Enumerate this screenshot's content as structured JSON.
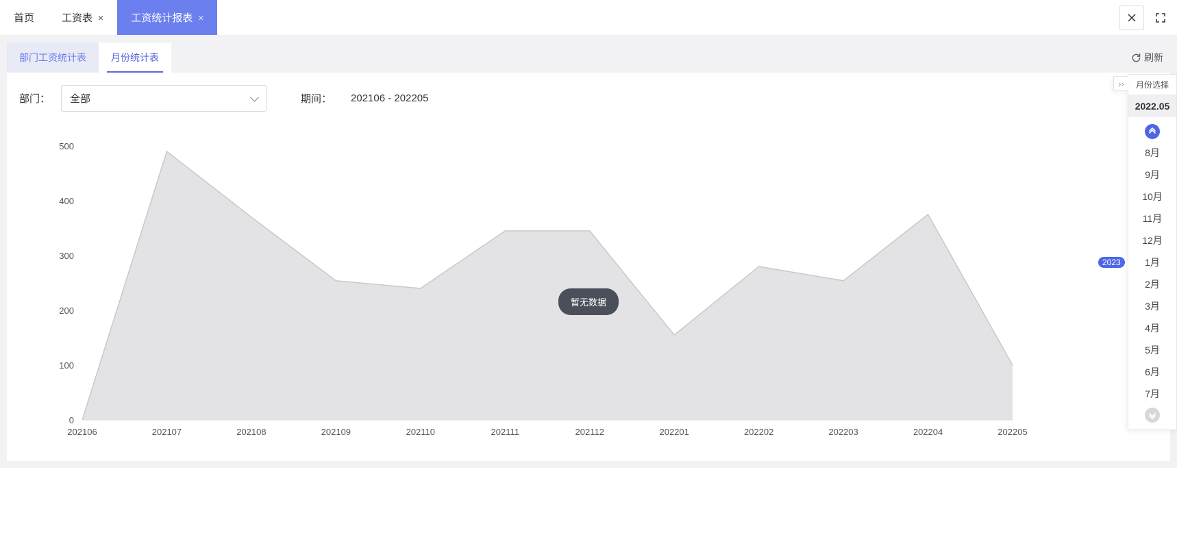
{
  "tabs": [
    {
      "label": "首页",
      "closable": false,
      "active": false
    },
    {
      "label": "工资表",
      "closable": true,
      "active": false
    },
    {
      "label": "工资统计报表",
      "closable": true,
      "active": true
    }
  ],
  "sub_tabs": [
    {
      "label": "部门工资统计表",
      "active": false
    },
    {
      "label": "月份统计表",
      "active": true
    }
  ],
  "refresh_label": "刷新",
  "filter": {
    "dept_label": "部门：",
    "dept_value": "全部",
    "period_label": "期间：",
    "period_value": "202106 - 202205"
  },
  "chart": {
    "type": "area",
    "categories": [
      "202106",
      "202107",
      "202108",
      "202109",
      "202110",
      "202111",
      "202112",
      "202201",
      "202202",
      "202203",
      "202204",
      "202205"
    ],
    "values": [
      0,
      490,
      370,
      254,
      240,
      345,
      345,
      155,
      280,
      254,
      375,
      100
    ],
    "ylim": [
      0,
      500
    ],
    "ytick_step": 100,
    "xlabel_fontsize": 13,
    "ylabel_fontsize": 13,
    "axis_text_color": "#555555",
    "line_color": "#c9c9cc",
    "fill_color": "#e3e3e6",
    "grid_color": "#f0f0f0",
    "background_color": "#ffffff",
    "line_width": 1.5
  },
  "tooltip": {
    "text": "暂无数据"
  },
  "month_panel": {
    "title": "月份选择",
    "selected": "2022.05",
    "year_badge": "2023",
    "items": [
      "8月",
      "9月",
      "10月",
      "11月",
      "12月",
      "1月",
      "2月",
      "3月",
      "4月",
      "5月",
      "6月",
      "7月"
    ],
    "year_badge_index": 5
  },
  "icons": {
    "close_x": "×",
    "double_chevron": "››"
  }
}
